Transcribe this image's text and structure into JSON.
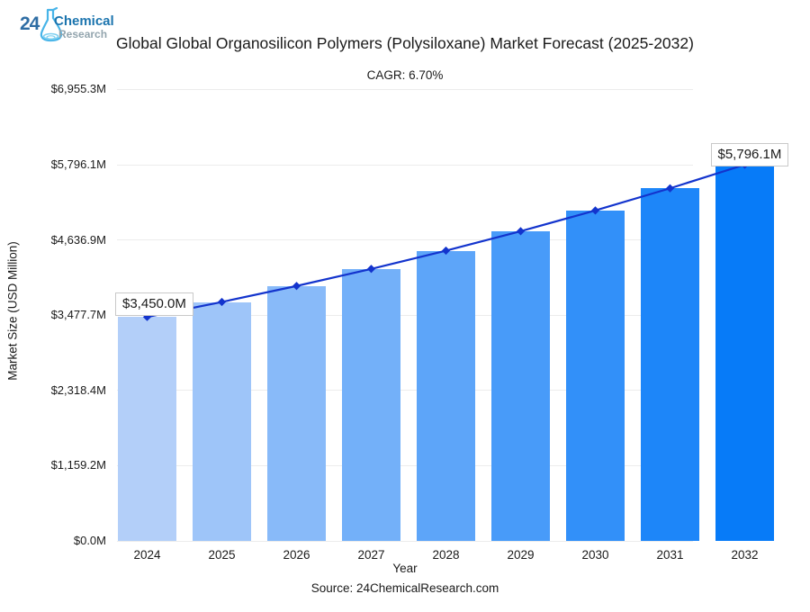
{
  "logo": {
    "number": "24",
    "name_top": "Chemical",
    "name_bottom": "Research"
  },
  "header": {
    "title": "Global Global Organosilicon Polymers (Polysiloxane) Market Forecast (2025-2032)",
    "subtitle": "CAGR: 6.70%"
  },
  "chart_data": {
    "type": "bar",
    "overlay": "line with diamond markers, same series",
    "title": "Global Global Organosilicon Polymers (Polysiloxane) Market Forecast (2025-2032)",
    "subtitle": "CAGR: 6.70%",
    "xlabel": "Year",
    "ylabel": "Market Size (USD Million)",
    "categories": [
      "2024",
      "2025",
      "2026",
      "2027",
      "2028",
      "2029",
      "2030",
      "2031",
      "2032"
    ],
    "values": [
      3450.0,
      3681.2,
      3927.8,
      4190.9,
      4471.7,
      4771.3,
      5091.0,
      5432.1,
      5796.1
    ],
    "ylim": [
      0,
      6955.3
    ],
    "grid": true,
    "legend": "none",
    "yticks": [
      {
        "value": 0,
        "label": "$0.0M"
      },
      {
        "value": 1159.2,
        "label": "$1,159.2M"
      },
      {
        "value": 2318.4,
        "label": "$2,318.4M"
      },
      {
        "value": 3477.7,
        "label": "$3,477.7M"
      },
      {
        "value": 4636.9,
        "label": "$4,636.9M"
      },
      {
        "value": 5796.1,
        "label": "$5,796.1M"
      },
      {
        "value": 6955.3,
        "label": "$6,955.3M"
      }
    ],
    "annotations": [
      {
        "index": 0,
        "text": "$3,450.0M",
        "placement": "left"
      },
      {
        "index": 8,
        "text": "$5,796.1M",
        "placement": "top"
      }
    ],
    "colors": {
      "bar_gradient": [
        "#b3cff9",
        "#9ec5f9",
        "#88baf9",
        "#73b0f9",
        "#5da5f9",
        "#489bf9",
        "#3290f9",
        "#1d86f9",
        "#077bf8"
      ],
      "line": "#1334cd",
      "grid": "#ececec"
    }
  },
  "footer": {
    "source": "Source: 24ChemicalResearch.com"
  }
}
